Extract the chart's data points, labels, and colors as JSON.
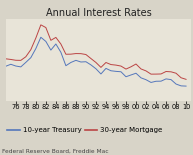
{
  "title": "Annual Interest Rates",
  "background_color": "#d8d4c8",
  "plot_bg_color": "#e8e4d8",
  "years": [
    1974,
    1975,
    1976,
    1977,
    1978,
    1979,
    1980,
    1981,
    1982,
    1983,
    1984,
    1985,
    1986,
    1987,
    1988,
    1989,
    1990,
    1991,
    1992,
    1993,
    1994,
    1995,
    1996,
    1997,
    1998,
    1999,
    2000,
    2001,
    2002,
    2003,
    2004,
    2005,
    2006,
    2007,
    2008,
    2009,
    2010
  ],
  "treasury_10yr": [
    7.56,
    7.99,
    7.61,
    7.42,
    8.41,
    9.44,
    11.43,
    13.91,
    13.0,
    11.1,
    12.44,
    10.62,
    7.68,
    8.39,
    8.85,
    8.49,
    8.55,
    7.86,
    7.01,
    5.87,
    7.09,
    6.57,
    6.44,
    6.35,
    5.26,
    5.65,
    6.03,
    5.02,
    4.61,
    4.01,
    4.27,
    4.29,
    4.79,
    4.63,
    3.66,
    3.26,
    3.21
  ],
  "mortgage_30yr": [
    9.19,
    9.05,
    8.87,
    8.85,
    9.64,
    11.2,
    13.74,
    16.63,
    16.04,
    13.24,
    13.88,
    12.43,
    10.19,
    10.21,
    10.34,
    10.32,
    10.13,
    9.25,
    8.39,
    7.31,
    8.38,
    7.93,
    7.81,
    7.6,
    6.94,
    7.44,
    8.05,
    6.97,
    6.54,
    5.83,
    5.84,
    5.87,
    6.41,
    6.34,
    6.03,
    5.04,
    4.69
  ],
  "treasury_color": "#5577bb",
  "mortgage_color": "#bb4444",
  "xtick_labels": [
    "76",
    "78",
    "80",
    "82",
    "84",
    "86",
    "88",
    "90",
    "92",
    "94",
    "96",
    "98",
    "00",
    "02",
    "04",
    "06",
    "08",
    "10"
  ],
  "xtick_years": [
    1976,
    1978,
    1980,
    1982,
    1984,
    1986,
    1988,
    1990,
    1992,
    1994,
    1996,
    1998,
    2000,
    2002,
    2004,
    2006,
    2008,
    2010
  ],
  "title_fontsize": 7.0,
  "tick_fontsize": 4.8,
  "legend_fontsize": 5.0,
  "source_text": "Federal Reserve Board, Freddie Mac",
  "source_fontsize": 4.2,
  "xlim_left": 1974,
  "xlim_right": 2011,
  "ylim_bottom": 0,
  "ylim_top": 18
}
